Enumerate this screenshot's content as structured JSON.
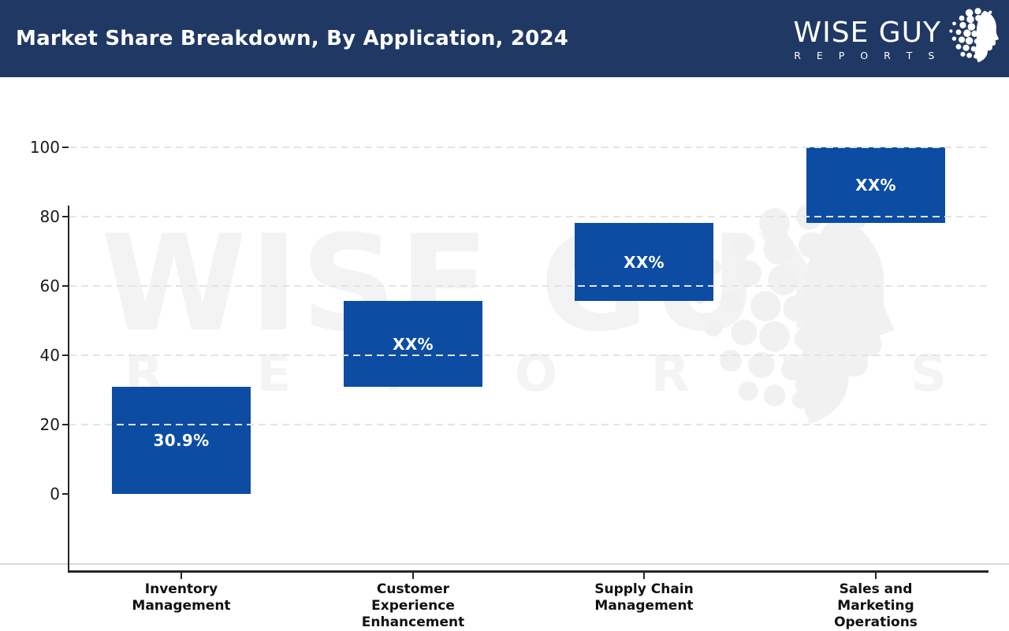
{
  "header": {
    "title": "Market Share Breakdown, By Application, 2024",
    "bg_color": "#203864",
    "brand": {
      "name": "WISE GUY",
      "sub": "R E P O R T S"
    }
  },
  "watermark": {
    "line1": "WISE GUY",
    "line2": "R E P O R T S"
  },
  "chart_data": {
    "type": "bar",
    "subtype": "waterfall",
    "title": "Market Share Breakdown, By Application, 2024",
    "categories": [
      "Inventory Management",
      "Customer Experience Enhancement",
      "Supply Chain Management",
      "Sales and Marketing Operations"
    ],
    "category_lines": [
      [
        "Inventory",
        "Management"
      ],
      [
        "Customer",
        "Experience",
        "Enhancement"
      ],
      [
        "Supply Chain",
        "Management"
      ],
      [
        "Sales and",
        "Marketing",
        "Operations"
      ]
    ],
    "segments": [
      {
        "category": "Inventory Management",
        "label": "30.9%",
        "start": 0,
        "end": 30.9
      },
      {
        "category": "Customer Experience Enhancement",
        "label": "XX%",
        "start": 30.9,
        "end": 55.6
      },
      {
        "category": "Supply Chain Management",
        "label": "XX%",
        "start": 55.6,
        "end": 78.1
      },
      {
        "category": "Sales and Marketing Operations",
        "label": "XX%",
        "start": 78.1,
        "end": 100
      }
    ],
    "yticks": [
      0,
      20,
      40,
      60,
      80,
      100
    ],
    "ylim": [
      0,
      105
    ],
    "xlabel": "",
    "ylabel": "",
    "grid": "horizontal-dashed",
    "legend": "none",
    "bar_color": "#0c4ca3",
    "bar_label_color": "#ffffff",
    "axis_color": "#262626",
    "gridline_color": "#e4e4e4"
  }
}
